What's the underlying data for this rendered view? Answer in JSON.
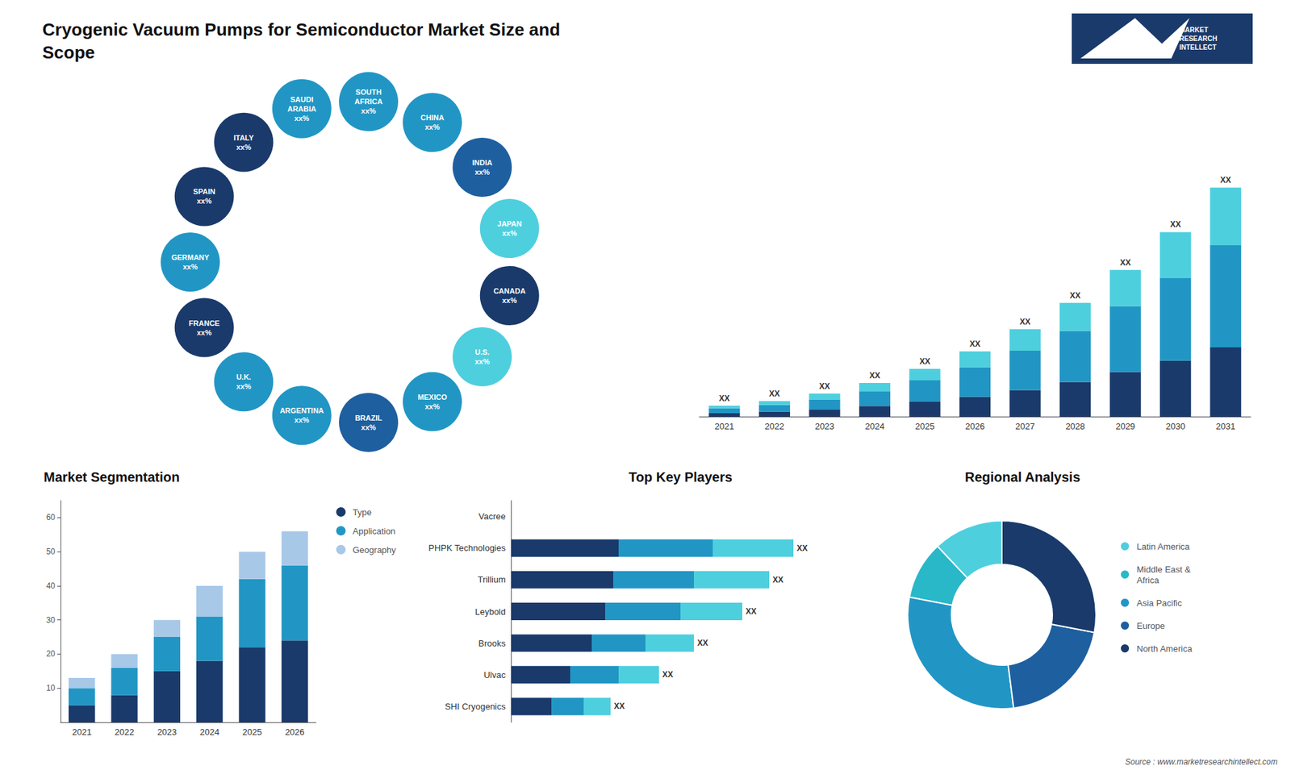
{
  "title": "Cryogenic Vacuum Pumps for Semiconductor Market Size and\nScope",
  "annotations": [
    "MARKET\nRESEARCH\nINTELLECT",
    "Source : www.marketresearchintellect.com"
  ],
  "chart_data": [
    {
      "type": "map",
      "annotations": [
        "CANADA\nxx%",
        "U.S.\nxx%",
        "MEXICO\nxx%",
        "BRAZIL\nxx%",
        "ARGENTINA\nxx%",
        "U.K.\nxx%",
        "FRANCE\nxx%",
        "GERMANY\nxx%",
        "SPAIN\nxx%",
        "ITALY\nxx%",
        "SAUDI\nARABIA\nxx%",
        "SOUTH\nAFRICA\nxx%",
        "CHINA\nxx%",
        "INDIA\nxx%",
        "JAPAN\nxx%"
      ],
      "colors": [
        "#1a3a6b",
        "#4ecfde",
        "#2196c4",
        "#1e5fa0",
        "#2196c4",
        "#2196c4",
        "#1a3a6b",
        "#2196c4",
        "#1a3a6b",
        "#1a3a6b",
        "#2196c4",
        "#2196c4",
        "#2196c4",
        "#1e5fa0",
        "#4ecfde"
      ]
    },
    {
      "type": "bar",
      "categories": [
        "2021",
        "2022",
        "2023",
        "2024",
        "2025",
        "2026",
        "2027",
        "2028",
        "2029",
        "2030",
        "2031"
      ],
      "series": [
        {
          "color": "#1a3a6b",
          "values": [
            1.0,
            1.5,
            2.2,
            3.2,
            4.5,
            6.0,
            8.0,
            10.5,
            13.5,
            17.0,
            21.0
          ]
        },
        {
          "color": "#2196c4",
          "values": [
            1.5,
            2.0,
            3.0,
            4.5,
            6.5,
            9.0,
            12.0,
            15.5,
            20.0,
            25.0,
            31.0
          ]
        },
        {
          "color": "#4ecfde",
          "values": [
            0.8,
            1.2,
            1.8,
            2.5,
            3.5,
            4.8,
            6.5,
            8.5,
            11.0,
            14.0,
            17.5
          ]
        }
      ],
      "stacked": true,
      "ylim": [
        0,
        93.825
      ],
      "annotations": [
        "XX",
        "XX",
        "XX",
        "XX",
        "XX",
        "XX",
        "XX",
        "XX",
        "XX",
        "XX",
        "XX"
      ],
      "tick_labels": "x",
      "grid": false
    },
    {
      "type": "bar",
      "title": "Market Segmentation",
      "categories": [
        "2021",
        "2022",
        "2023",
        "2024",
        "2025",
        "2026"
      ],
      "series": [
        {
          "name": "Type",
          "color": "#1a3a6b",
          "values": [
            5,
            8,
            15,
            18,
            22,
            24
          ]
        },
        {
          "name": "Application",
          "color": "#2196c4",
          "values": [
            5,
            8,
            10,
            13,
            20,
            22
          ]
        },
        {
          "name": "Geography",
          "color": "#a8c8e8",
          "values": [
            3,
            4,
            5,
            9,
            8,
            10
          ]
        }
      ],
      "stacked": true,
      "ylim": [
        0,
        65
      ],
      "yticks": [
        10,
        20,
        30,
        40,
        50,
        60
      ],
      "legend": "right",
      "grid": false
    },
    {
      "type": "bar",
      "title": "Top Key Players",
      "orientation": "horizontal",
      "categories": [
        "Vacree",
        "PHPK Technologies",
        "Trillium",
        "Leybold",
        "Brooks",
        "Ulvac",
        "SHI Cryogenics"
      ],
      "series": [
        {
          "color": "#1a3a6b",
          "values": [
            0,
            4.0,
            3.8,
            3.5,
            3.0,
            2.2,
            1.5
          ]
        },
        {
          "color": "#2196c4",
          "values": [
            0,
            3.5,
            3.0,
            2.8,
            2.0,
            1.8,
            1.2
          ]
        },
        {
          "color": "#4ecfde",
          "values": [
            0,
            3.0,
            2.8,
            2.3,
            1.8,
            1.5,
            1.0
          ]
        }
      ],
      "stacked": true,
      "xlim": [
        0,
        13
      ],
      "annotations": [
        null,
        "XX",
        "XX",
        "XX",
        "XX",
        "XX",
        "XX"
      ],
      "tick_labels": "y",
      "grid": false
    },
    {
      "type": "donut",
      "title": "Regional Analysis",
      "categories": [
        "Latin America",
        "Middle East &\nAfrica",
        "Asia Pacific",
        "Europe",
        "North America"
      ],
      "values": [
        12,
        10,
        30,
        20,
        28
      ],
      "colors": [
        "#4ecfde",
        "#29b8c8",
        "#2196c4",
        "#1e5fa0",
        "#1a3a6b"
      ],
      "legend": "right"
    }
  ]
}
